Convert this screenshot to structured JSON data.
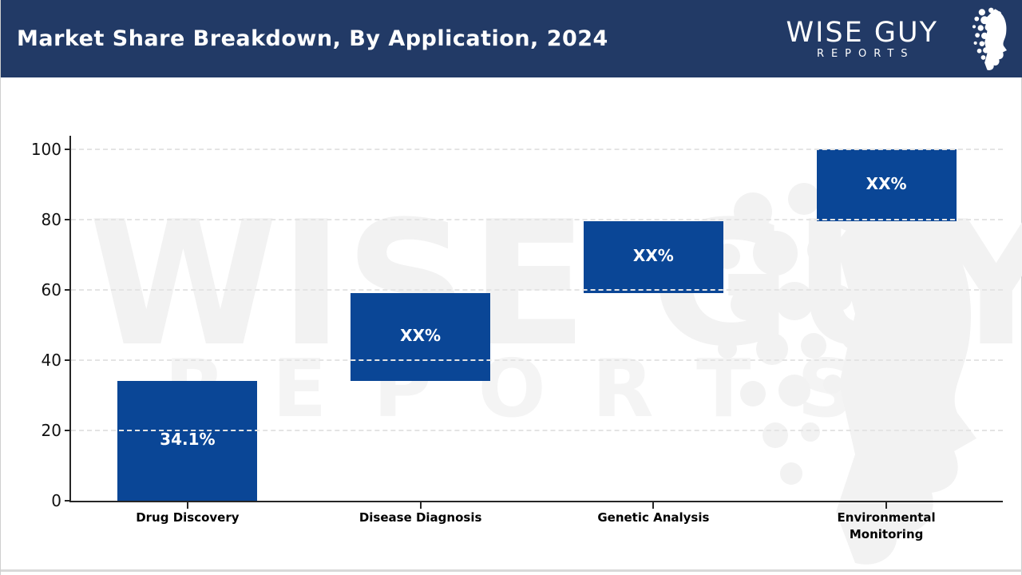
{
  "header": {
    "title": "Market Share Breakdown, By Application, 2024",
    "bg_color": "#223a66",
    "logo": {
      "line1": "WISE GUY",
      "line2": "REPORTS"
    }
  },
  "watermark": {
    "wordmark": "WISE GUY",
    "subtitle": "REPORTS"
  },
  "chart_data": {
    "type": "bar",
    "subtype": "waterfall",
    "title": "Market Share Breakdown, By Application, 2024",
    "categories": [
      "Drug Discovery",
      "Disease Diagnosis",
      "Genetic Analysis",
      "Environmental Monitoring"
    ],
    "segments": [
      {
        "category": "Drug Discovery",
        "start": 0,
        "end": 34.1,
        "label": "34.1%"
      },
      {
        "category": "Disease Diagnosis",
        "start": 34.1,
        "end": 59,
        "label": "XX%"
      },
      {
        "category": "Genetic Analysis",
        "start": 59,
        "end": 79.5,
        "label": "XX%"
      },
      {
        "category": "Environmental Monitoring",
        "start": 79.5,
        "end": 100,
        "label": "XX%"
      }
    ],
    "ylim": [
      0,
      100
    ],
    "yticks": [
      0,
      20,
      40,
      60,
      80,
      100
    ],
    "xlabel": "",
    "ylabel": "",
    "grid": "horizontal-dashed",
    "legend": "none",
    "bar_color": "#0a4696",
    "bar_label_color": "#ffffff",
    "axis_color": "#262626",
    "grid_color": "#e4e4e4"
  }
}
